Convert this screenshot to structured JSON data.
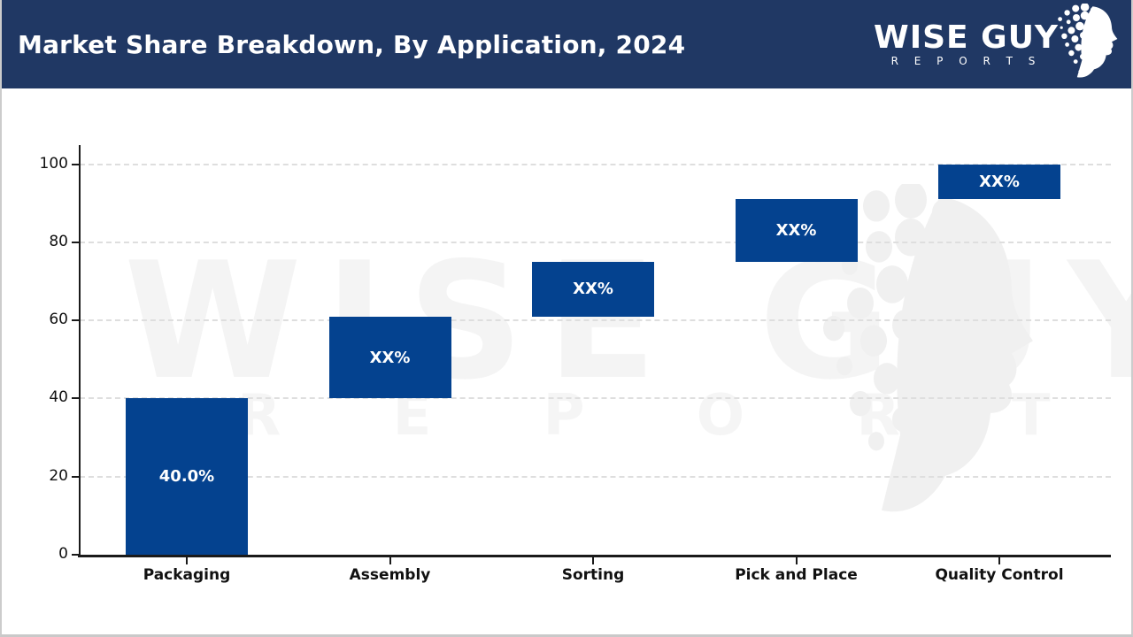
{
  "header": {
    "title": "Market Share Breakdown, By Application, 2024",
    "logo": {
      "line1": "WISE GUY",
      "line2": "R E P O R T S"
    }
  },
  "watermark": {
    "line1": "WISE GUY",
    "line2": "R E P O R T S"
  },
  "chart_data": {
    "type": "bar",
    "subtype": "waterfall (stepped segmented bars)",
    "title": "Market Share Breakdown, By Application, 2024",
    "categories": [
      "Packaging",
      "Assembly",
      "Sorting",
      "Pick and Place",
      "Quality Control"
    ],
    "series": [
      {
        "name": "Market Share",
        "segments": [
          [
            0,
            40
          ],
          [
            40,
            61
          ],
          [
            61,
            75
          ],
          [
            75,
            91
          ],
          [
            91,
            100
          ]
        ],
        "values": [
          40,
          21,
          14,
          16,
          9
        ]
      }
    ],
    "bar_labels": [
      "40.0%",
      "XX%",
      "XX%",
      "XX%",
      "XX%"
    ],
    "yticks": [
      0,
      20,
      40,
      60,
      80,
      100
    ],
    "ytick_labels": [
      "0",
      "20",
      "40",
      "60",
      "80",
      "100"
    ],
    "ylim": [
      0,
      105
    ],
    "xlabel": "",
    "ylabel": "",
    "grid": "horizontal dashed gridlines",
    "legend": "none",
    "colors": {
      "bar": "#04428f",
      "bar_label": "#ffffff",
      "axis": "#1a1a1a",
      "grid": "#dedede",
      "header_bg": "#203864",
      "header_text": "#ffffff",
      "watermark": "#f3f3f3",
      "tick_label": "#111111"
    }
  }
}
